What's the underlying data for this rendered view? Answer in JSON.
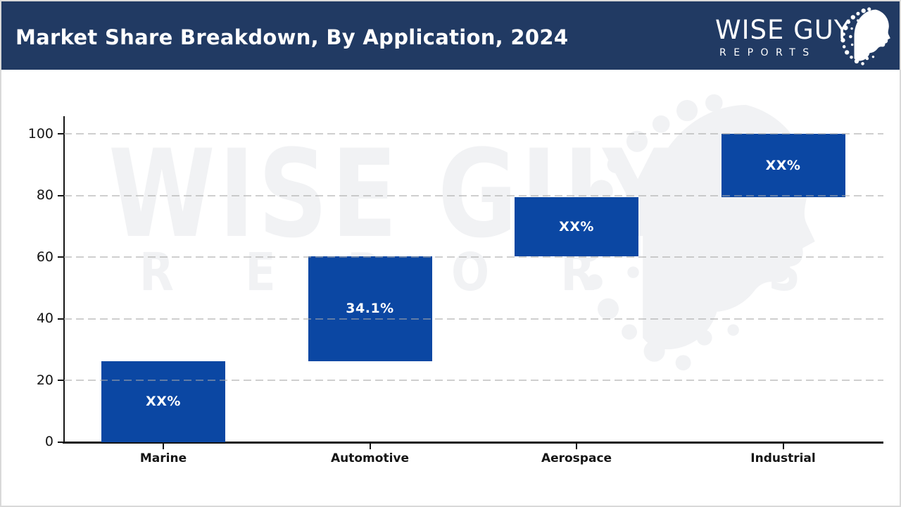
{
  "header": {
    "title": "Market Share Breakdown, By Application, 2024",
    "logo": {
      "line1": "WISE GUY",
      "line2": "REPORTS"
    }
  },
  "watermark": {
    "line1": "WISE GUY",
    "line2": "R E P O R T S"
  },
  "chart_data": {
    "type": "bar",
    "subtype": "waterfall",
    "title": "Market Share Breakdown, By Application, 2024",
    "categories": [
      "Marine",
      "Automotive",
      "Aerospace",
      "Industrial"
    ],
    "segments": [
      {
        "category": "Marine",
        "start": 0,
        "end": 26.2,
        "value_label": "XX%"
      },
      {
        "category": "Automotive",
        "start": 26.2,
        "end": 60.3,
        "value_label": "34.1%"
      },
      {
        "category": "Aerospace",
        "start": 60.3,
        "end": 79.4,
        "value_label": "XX%"
      },
      {
        "category": "Industrial",
        "start": 79.4,
        "end": 100,
        "value_label": "XX%"
      }
    ],
    "yticks": [
      0,
      20,
      40,
      60,
      80,
      100
    ],
    "ylim": [
      0,
      105
    ],
    "xlabel": "",
    "ylabel": "",
    "grid": "horizontal-dashed-over-bars",
    "legend": "none",
    "bar_color": "#0b47a3",
    "bar_label_color": "#ffffff"
  },
  "colors": {
    "header_bg": "#213a63",
    "bar": "#0b47a3",
    "axis": "#151515",
    "grid": "#d8d8d8",
    "watermark": "#f1f2f4",
    "page_border": "#d9d9d9"
  }
}
